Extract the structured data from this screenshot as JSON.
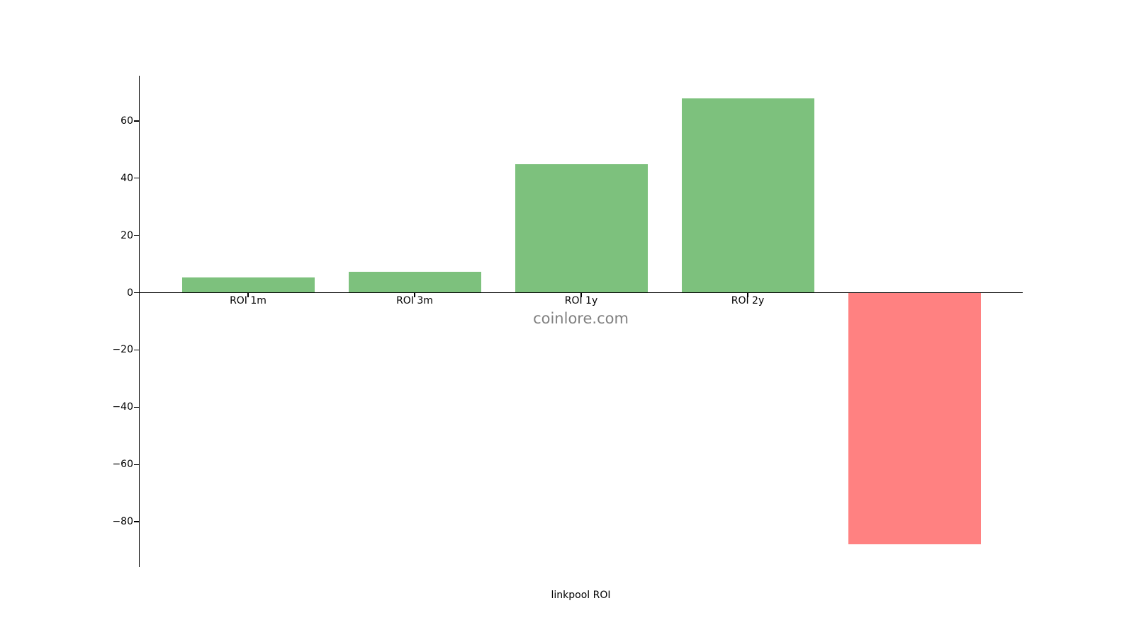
{
  "chart_data": {
    "type": "bar",
    "title": "",
    "xlabel": "linkpool ROI",
    "ylabel": "",
    "categories": [
      "ROI 1m",
      "ROI 3m",
      "ROI 1y",
      "ROI 2y",
      ""
    ],
    "values": [
      5.4,
      7.4,
      45,
      68,
      -88
    ],
    "positive_color": "#7dc17d",
    "negative_color": "#ff8181",
    "axis_color": "#000000",
    "yticks": [
      60,
      40,
      20,
      0,
      -20,
      -40,
      -60,
      -80
    ],
    "ytick_labels": [
      "60",
      "40",
      "20",
      "0",
      "−20",
      "−40",
      "−60",
      "−80"
    ],
    "ylim": [
      -95.8,
      75.8
    ],
    "grid": false,
    "legend_position": "none",
    "watermark": {
      "text": "coinlore.com",
      "color": "#808080"
    }
  }
}
